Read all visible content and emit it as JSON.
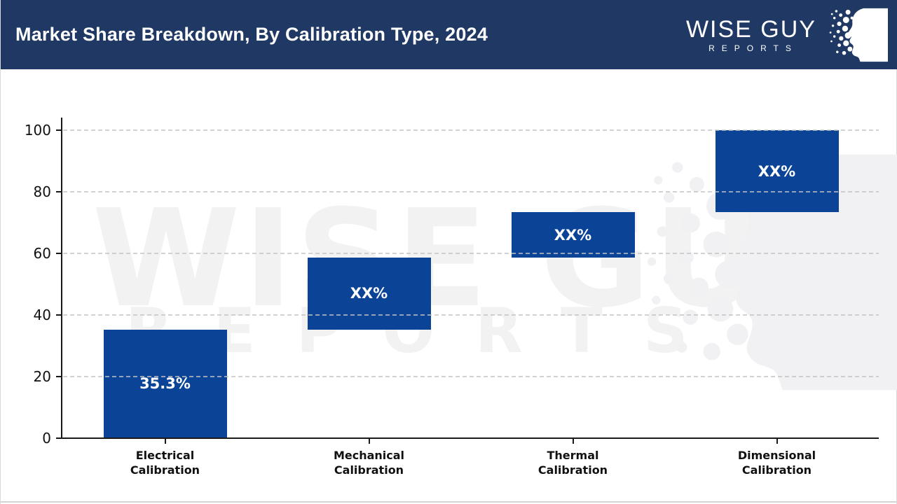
{
  "header": {
    "title": "Market Share Breakdown, By Calibration Type, 2024",
    "logo": {
      "line1": "WISE GUY",
      "line2": "REPORTS"
    }
  },
  "watermark": {
    "line1": "WISE GU",
    "line2": "REPORTS"
  },
  "colors": {
    "header_bg": "#1f3864",
    "bar": "#0b4397",
    "bar_label": "#ffffff",
    "axis": "#1a1a1a",
    "gridline": "#c9c9c9",
    "watermark": "#f2f2f2",
    "border": "#d9d9d9"
  },
  "chart_data": {
    "type": "bar",
    "subtype": "waterfall",
    "title": "Market Share Breakdown, By Calibration Type, 2024",
    "categories": [
      "Electrical Calibration",
      "Mechanical Calibration",
      "Thermal Calibration",
      "Dimensional Calibration"
    ],
    "segments": [
      {
        "category": "Electrical Calibration",
        "start": 0,
        "end": 35.3,
        "label": "35.3%"
      },
      {
        "category": "Mechanical Calibration",
        "start": 35.3,
        "end": 58.7,
        "label": "XX%"
      },
      {
        "category": "Thermal Calibration",
        "start": 58.7,
        "end": 73.3,
        "label": "XX%"
      },
      {
        "category": "Dimensional Calibration",
        "start": 73.3,
        "end": 100,
        "label": "XX%"
      }
    ],
    "values_pct_increment": [
      35.3,
      23.4,
      14.6,
      26.7
    ],
    "xlabel": "",
    "ylabel": "",
    "ylim": [
      0,
      100
    ],
    "yticks": [
      0,
      20,
      40,
      60,
      80,
      100
    ],
    "grid": "horizontal-dashed",
    "legend": "none",
    "bar_color": "#0b4397",
    "bar_label_color": "#ffffff"
  }
}
